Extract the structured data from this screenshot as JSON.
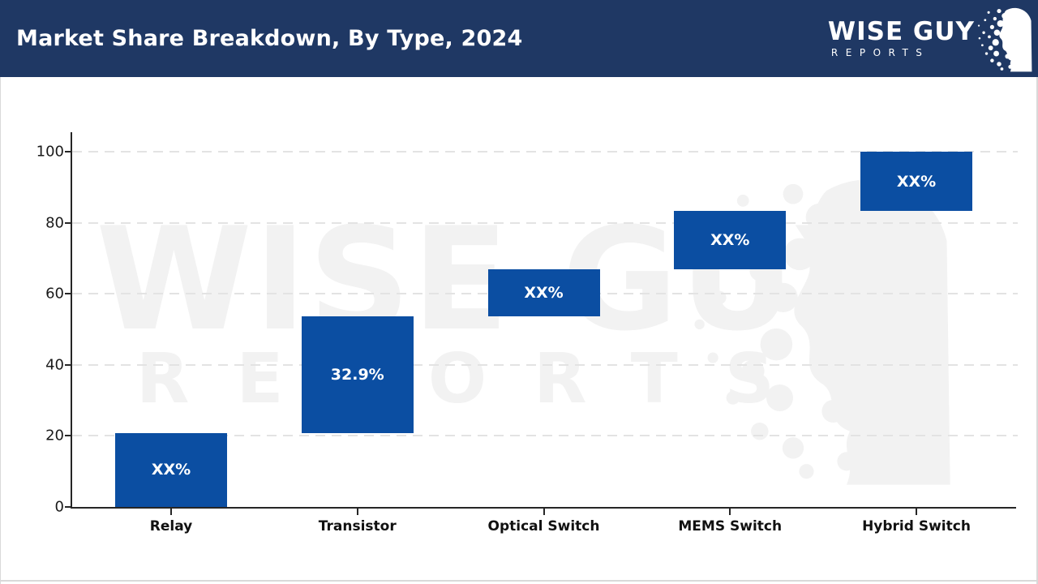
{
  "header": {
    "title": "Market Share Breakdown, By Type, 2024",
    "bg_color": "#1F3864",
    "logo": {
      "line1": "WISE GUY",
      "line2": "REPORTS"
    }
  },
  "watermark": {
    "line1": "WISE GUY",
    "line2": "REPORTS"
  },
  "chart_data": {
    "type": "bar",
    "subtype": "waterfall",
    "title": "Market Share Breakdown, By Type, 2024",
    "xlabel": "",
    "ylabel": "",
    "categories": [
      "Relay",
      "Transistor",
      "Optical Switch",
      "MEMS Switch",
      "Hybrid Switch"
    ],
    "segments": [
      {
        "category": "Relay",
        "start": 0,
        "end": 20.8,
        "value": 20.8,
        "label": "XX%"
      },
      {
        "category": "Transistor",
        "start": 20.8,
        "end": 53.7,
        "value": 32.9,
        "label": "32.9%"
      },
      {
        "category": "Optical Switch",
        "start": 53.7,
        "end": 66.9,
        "value": 13.2,
        "label": "XX%"
      },
      {
        "category": "MEMS Switch",
        "start": 66.9,
        "end": 83.3,
        "value": 16.4,
        "label": "XX%"
      },
      {
        "category": "Hybrid Switch",
        "start": 83.3,
        "end": 100.0,
        "value": 16.7,
        "label": "XX%"
      }
    ],
    "y_ticks": [
      0,
      20,
      40,
      60,
      80,
      100
    ],
    "ylim": [
      0,
      105
    ],
    "grid": "horizontal dashed, behind bars",
    "legend": "none",
    "bar_color": "#0B4EA2",
    "bar_label_color": "#ffffff",
    "note": "waterfall-style cumulative bars; all labels masked as XX% except Transistor (32.9%); unlabeled values estimated from axis"
  }
}
